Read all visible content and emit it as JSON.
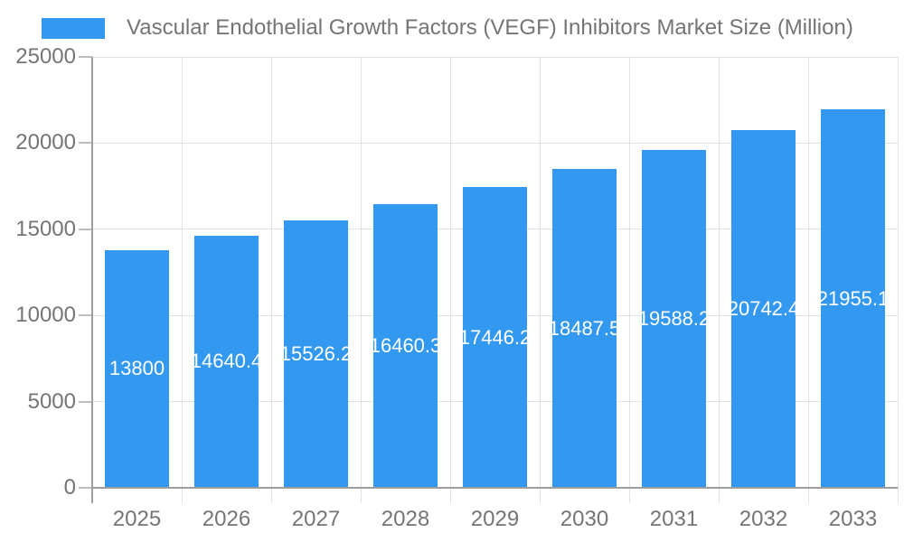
{
  "chart_data": {
    "type": "bar",
    "title": "Vascular Endothelial Growth Factors (VEGF) Inhibitors Market Size (Million)",
    "categories": [
      "2025",
      "2026",
      "2027",
      "2028",
      "2029",
      "2030",
      "2031",
      "2032",
      "2033"
    ],
    "values": [
      13800,
      14640.4,
      15526.2,
      16460.3,
      17446.2,
      18487.5,
      19588.2,
      20742.4,
      21955.1
    ],
    "bar_labels": [
      "13800",
      "14640.4",
      "15526.2",
      "16460.3",
      "17446.2",
      "18487.5",
      "19588.2",
      "20742.4",
      "21955.1"
    ],
    "xlabel": "",
    "ylabel": "",
    "ylim": [
      0,
      25000
    ],
    "yticks": [
      0,
      5000,
      10000,
      15000,
      20000,
      25000
    ],
    "ytick_labels": [
      "0",
      "5000",
      "10000",
      "15000",
      "20000",
      "25000"
    ],
    "grid": true,
    "legend_position": "top-left",
    "colors": {
      "bar": "#3399F0",
      "grid": "#e2e2e2",
      "axis": "#9e9e9e",
      "tick": "#bdbdbd",
      "text": "#757575",
      "bar_label": "#ffffff",
      "background": "#ffffff"
    }
  }
}
